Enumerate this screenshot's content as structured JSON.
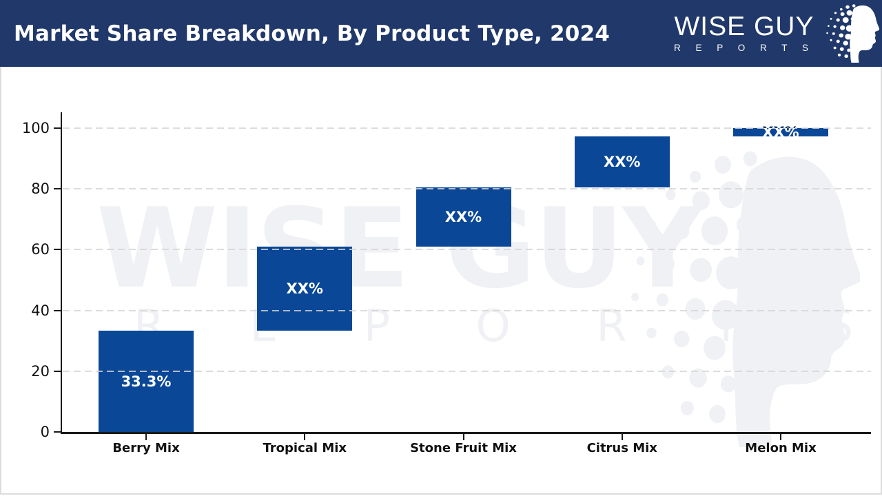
{
  "header": {
    "title": "Market Share Breakdown, By Product Type, 2024",
    "logo": {
      "line1": "WISE GUY",
      "line2": "R E P O R T S"
    }
  },
  "watermark": {
    "line1": "WISE GUY",
    "line2": "R E P O R T S"
  },
  "chart_data": {
    "type": "bar",
    "subtype": "waterfall",
    "title": "Market Share Breakdown, By Product Type, 2024",
    "categories": [
      "Berry Mix",
      "Tropical Mix",
      "Stone Fruit Mix",
      "Citrus Mix",
      "Melon Mix"
    ],
    "segments": [
      {
        "category": "Berry Mix",
        "start": 0,
        "end": 33.3,
        "label": "33.3%"
      },
      {
        "category": "Tropical Mix",
        "start": 33.3,
        "end": 61.1,
        "label": "XX%"
      },
      {
        "category": "Stone Fruit Mix",
        "start": 61.1,
        "end": 80.5,
        "label": "XX%"
      },
      {
        "category": "Citrus Mix",
        "start": 80.5,
        "end": 97.2,
        "label": "XX%"
      },
      {
        "category": "Melon Mix",
        "start": 97.2,
        "end": 100,
        "label": "XX%"
      }
    ],
    "yticks": [
      0,
      20,
      40,
      60,
      80,
      100
    ],
    "ylim": [
      0,
      105
    ],
    "xlabel": "",
    "ylabel": "",
    "grid": "horizontal-dashed",
    "legend": "none",
    "bar_color": "#0a4796",
    "bar_label_color": "#ffffff",
    "overflow_label_color": "#123a6b",
    "axis_color": "#1a1a1a",
    "grid_color": "#d5d5d5"
  },
  "colors": {
    "header_bg": "#20386a",
    "header_text": "#ffffff",
    "content_bg": "#ffffff",
    "border": "#dcdcdc",
    "watermark": "#f0f1f4"
  }
}
